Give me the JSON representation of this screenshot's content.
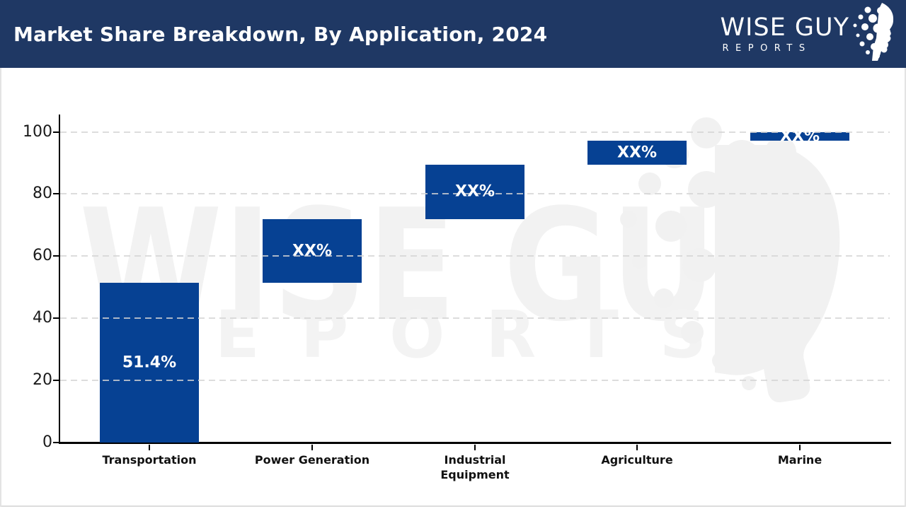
{
  "header": {
    "title": "Market Share Breakdown, By Application, 2024",
    "logo": {
      "wordmark": "WISE GUY",
      "subtitle": "REPORTS"
    }
  },
  "watermark": {
    "line1": "WISE GUY",
    "line2": "REPORTS"
  },
  "chart_data": {
    "type": "bar",
    "subtype": "waterfall-floating-bars",
    "title": "Market Share Breakdown, By Application, 2024",
    "xlabel": "",
    "ylabel": "",
    "ylim": [
      0,
      105.5
    ],
    "yticks": [
      0,
      20,
      40,
      60,
      80,
      100
    ],
    "grid": "horizontal-dashed",
    "categories": [
      "Transportation",
      "Power Generation",
      "Industrial\nEquipment",
      "Agriculture",
      "Marine"
    ],
    "segments": [
      {
        "category": "Transportation",
        "start": 0,
        "end": 51.4,
        "label": "51.4%"
      },
      {
        "category": "Power Generation",
        "start": 51.4,
        "end": 72.0,
        "label": "XX%"
      },
      {
        "category": "Industrial Equipment",
        "start": 72.0,
        "end": 89.5,
        "label": "XX%"
      },
      {
        "category": "Agriculture",
        "start": 89.5,
        "end": 97.2,
        "label": "XX%"
      },
      {
        "category": "Marine",
        "start": 97.2,
        "end": 100.0,
        "label": "XX%"
      }
    ],
    "colors": {
      "bar": "#064193",
      "header_background": "#1f3864",
      "bar_label_text": "#ffffff",
      "gridline": "#dddddd",
      "axis": "#000000",
      "watermark": "#f2f2f2"
    }
  }
}
